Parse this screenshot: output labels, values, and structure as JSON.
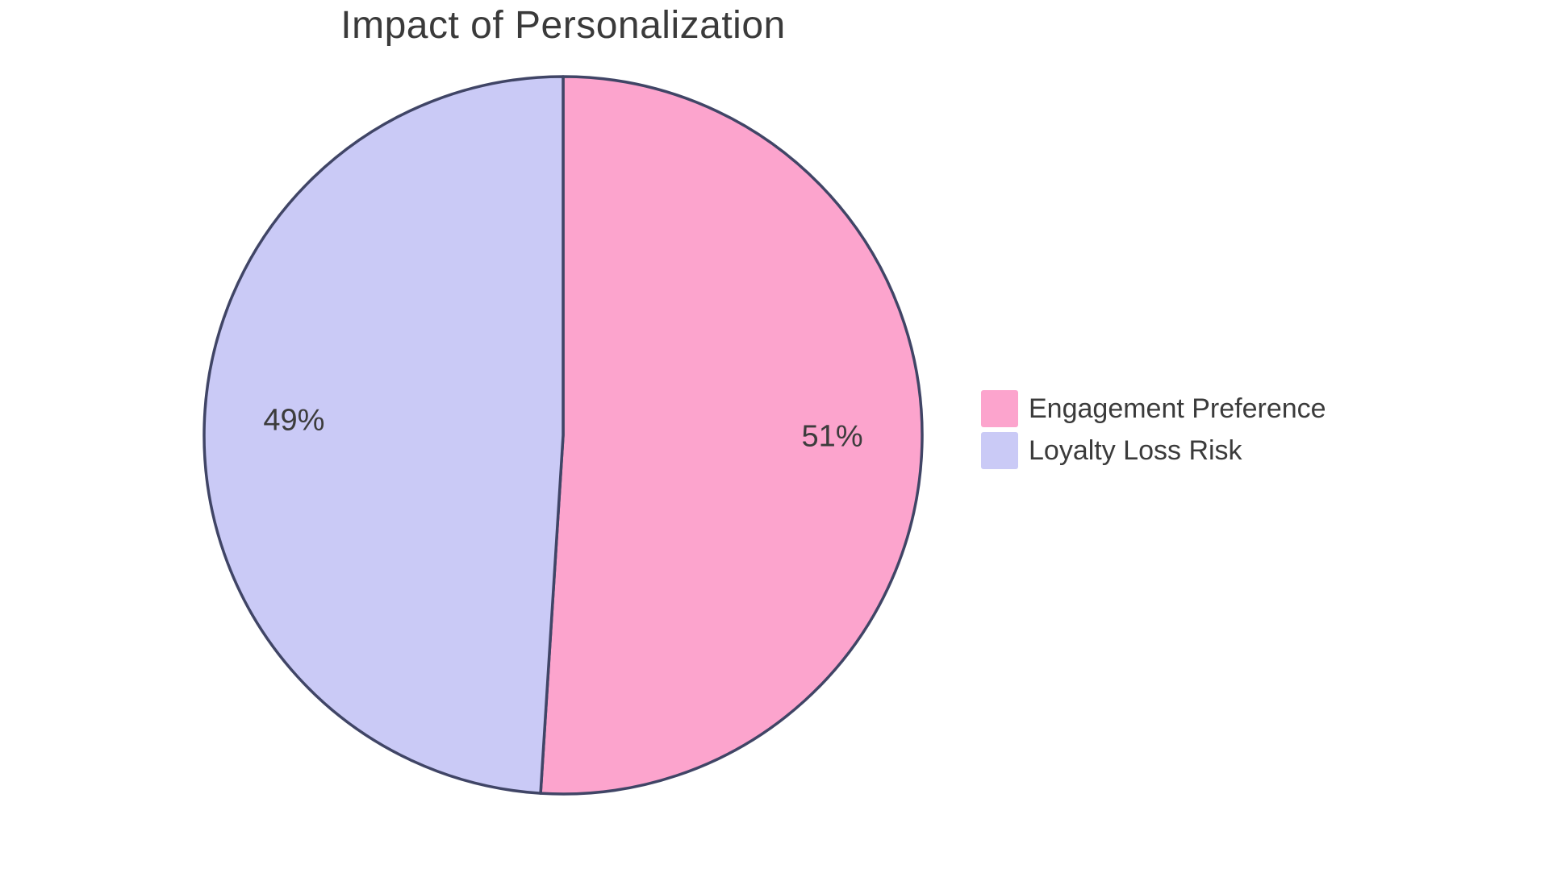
{
  "chart_data": {
    "type": "pie",
    "title": "Impact of Personalization",
    "slices": [
      {
        "label": "Engagement Preference",
        "value": 51,
        "pct_label": "51%",
        "color": "#FCA4CD"
      },
      {
        "label": "Loyalty Loss Risk",
        "value": 49,
        "pct_label": "49%",
        "color": "#CACAF6"
      }
    ],
    "start_angle": "top",
    "direction": "clockwise",
    "legend_position": "right",
    "stroke_color": "#404566",
    "stroke_width": 3.5,
    "label_color": "#3C3C3C",
    "title_color": "#3A3A3A",
    "background": "#FFFFFF"
  }
}
